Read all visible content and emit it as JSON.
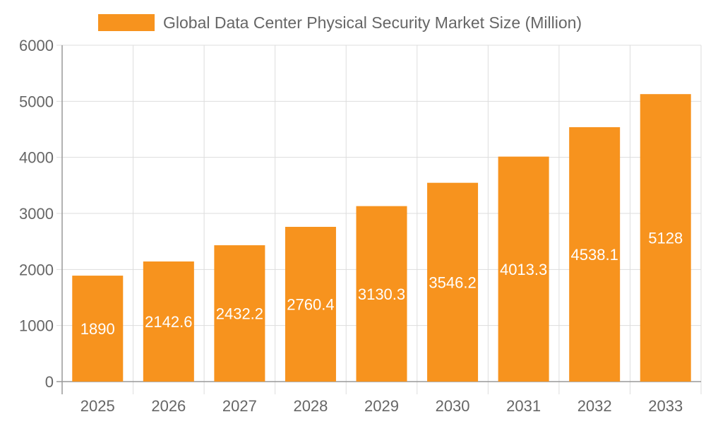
{
  "chart_data": {
    "type": "bar",
    "title": "",
    "xlabel": "",
    "ylabel": "",
    "legend": {
      "position": "top",
      "entries": [
        "Global Data Center Physical Security Market Size (Million)"
      ]
    },
    "categories": [
      "2025",
      "2026",
      "2027",
      "2028",
      "2029",
      "2030",
      "2031",
      "2032",
      "2033"
    ],
    "series": [
      {
        "name": "Global Data Center Physical Security Market Size (Million)",
        "values": [
          1890,
          2142.6,
          2432.2,
          2760.4,
          3130.3,
          3546.2,
          4013.3,
          4538.1,
          5128
        ],
        "color": "#F7931E"
      }
    ],
    "ylim": [
      0,
      6000
    ],
    "yticks": [
      0,
      1000,
      2000,
      3000,
      4000,
      5000,
      6000
    ],
    "grid": true,
    "data_labels": true
  }
}
